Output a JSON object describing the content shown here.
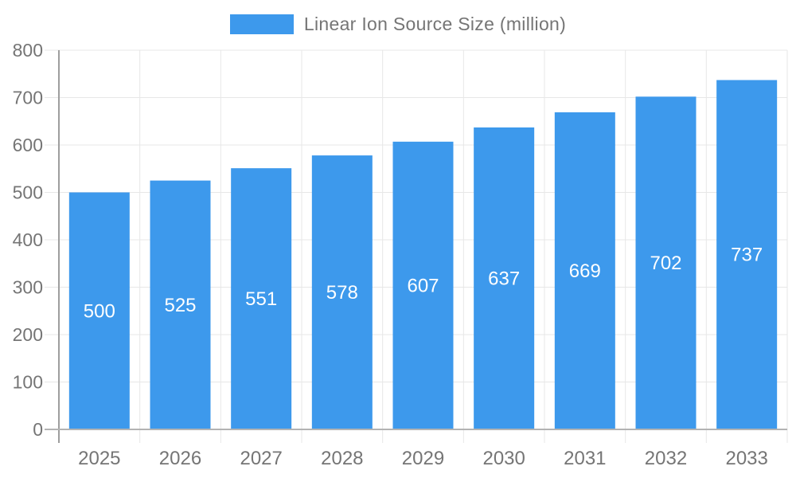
{
  "legend": {
    "label": "Linear Ion Source Size (million)"
  },
  "chart_data": {
    "type": "bar",
    "title": "",
    "categories": [
      "2025",
      "2026",
      "2027",
      "2028",
      "2029",
      "2030",
      "2031",
      "2032",
      "2033"
    ],
    "series": [
      {
        "name": "Linear Ion Source Size (million)",
        "values": [
          500,
          525,
          551,
          578,
          607,
          637,
          669,
          702,
          737
        ]
      }
    ],
    "xlabel": "",
    "ylabel": "",
    "ylim": [
      0,
      800
    ],
    "yticks": [
      0,
      100,
      200,
      300,
      400,
      500,
      600,
      700,
      800
    ],
    "grid": true,
    "legend_position": "top-center",
    "value_labels": "inside-middle-white"
  },
  "colors": {
    "bar": "#3d99ec",
    "grid": "#e7e7e7",
    "axis": "#9e9e9e",
    "baseline": "#b3b3b3",
    "tick_text": "#757575",
    "value_text": "#ffffff",
    "legend_text": "#757575"
  }
}
